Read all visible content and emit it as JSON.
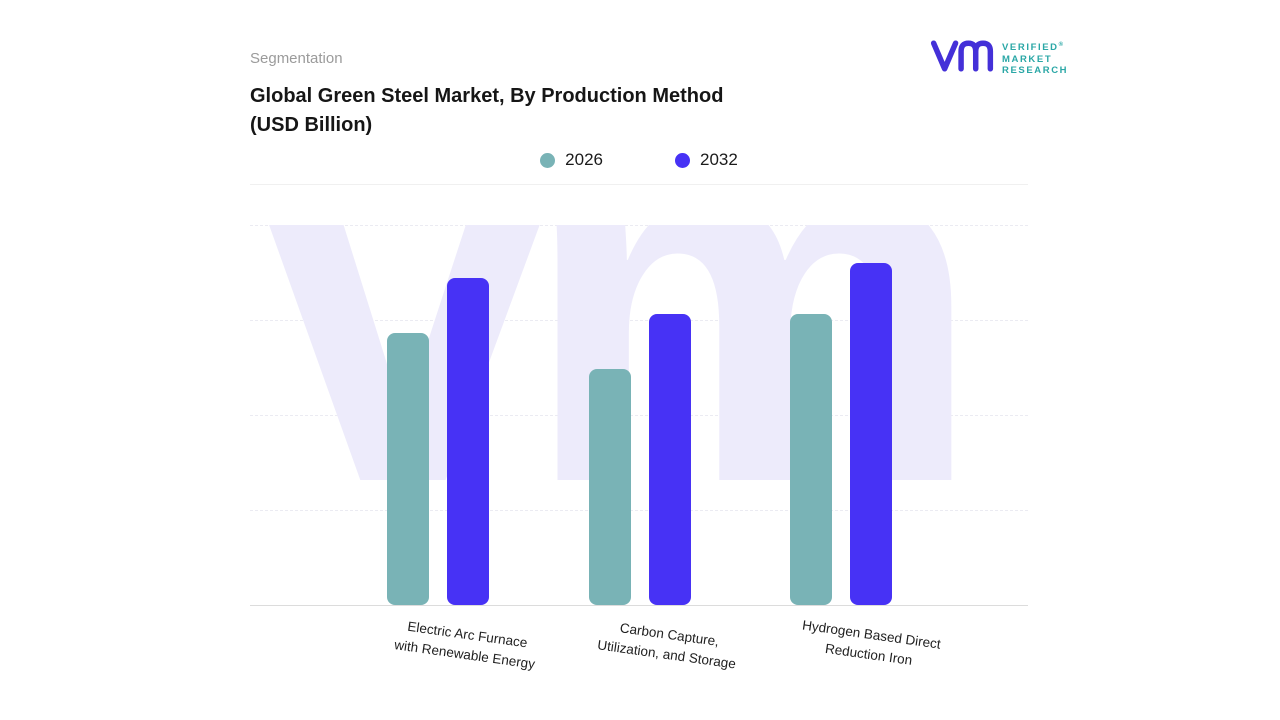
{
  "header": {
    "eyebrow": "Segmentation",
    "title_line1": "Global Green Steel Market, By Production Method",
    "title_line2": "(USD Billion)"
  },
  "logo": {
    "line1": "VERIFIED",
    "registered": "®",
    "line2": "MARKET",
    "line3": "RESEARCH"
  },
  "legend": {
    "items": [
      {
        "label": "2026",
        "color": "#79b3b6"
      },
      {
        "label": "2032",
        "color": "#4732f5"
      }
    ]
  },
  "watermark": "vm",
  "chart_data": {
    "type": "bar",
    "title": "Global Green Steel Market, By Production Method (USD Billion)",
    "xlabel": "",
    "ylabel": "",
    "ylim": [
      0,
      100
    ],
    "grid": "dashed-horizontal",
    "legend_position": "top",
    "categories": [
      {
        "lines": [
          "Electric Arc Furnace",
          "with Renewable Energy"
        ]
      },
      {
        "lines": [
          "Carbon Capture,",
          "Utilization, and Storage"
        ]
      },
      {
        "lines": [
          "Hydrogen Based Direct",
          "Reduction Iron"
        ]
      }
    ],
    "series": [
      {
        "name": "2026",
        "color": "#79b3b6",
        "values": [
          71.5,
          62,
          76.5
        ]
      },
      {
        "name": "2032",
        "color": "#4732f5",
        "values": [
          86,
          76.5,
          90
        ]
      }
    ]
  }
}
